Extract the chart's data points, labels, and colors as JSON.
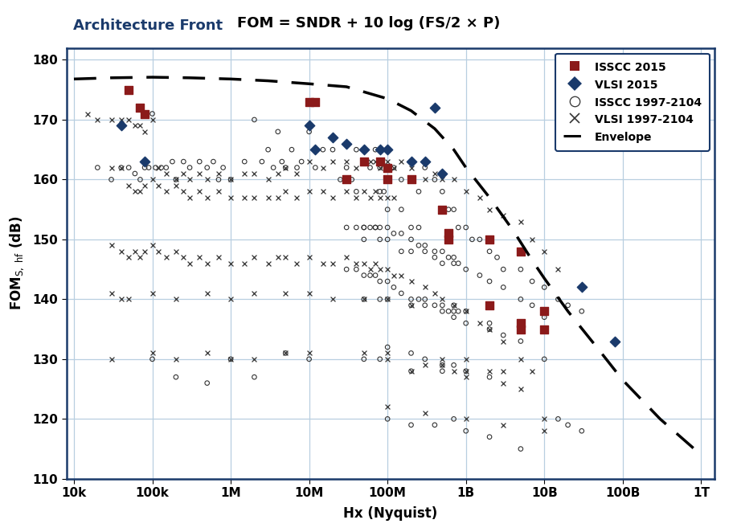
{
  "title": "FOM = SNDR + 10 log (FS/2 × P)",
  "subtitle": "Architecture Front",
  "xlabel": "Hx (Nyquist)",
  "ylabel": "FOMₛ, hf (dB)",
  "ylim": [
    110,
    182
  ],
  "yticks": [
    110,
    120,
    130,
    140,
    150,
    160,
    170,
    180
  ],
  "xtick_labels": [
    "10k",
    "100k",
    "1M",
    "10M",
    "100M",
    "1B",
    "10B",
    "100B",
    "1T"
  ],
  "xtick_vals": [
    10000,
    100000,
    1000000,
    10000000,
    100000000,
    1000000000,
    10000000000,
    100000000000,
    1000000000000
  ],
  "grid_color": "#b8cfe0",
  "bg_color": "#ffffff",
  "border_color": "#1a3a6b",
  "isscc2015_color": "#8b1a1a",
  "vlsi2015_color": "#1a3a6b",
  "isscc2015": [
    [
      50000,
      175
    ],
    [
      70000,
      172
    ],
    [
      80000,
      171
    ],
    [
      12000000,
      173
    ],
    [
      10000000,
      173
    ],
    [
      30000000,
      160
    ],
    [
      50000000,
      163
    ],
    [
      80000000,
      163
    ],
    [
      100000000,
      162
    ],
    [
      100000000,
      160
    ],
    [
      200000000,
      160
    ],
    [
      500000000,
      155
    ],
    [
      600000000,
      151
    ],
    [
      600000000,
      150
    ],
    [
      2000000000,
      150
    ],
    [
      2000000000,
      139
    ],
    [
      5000000000,
      148
    ],
    [
      5000000000,
      136
    ],
    [
      5000000000,
      135
    ],
    [
      10000000000,
      135
    ],
    [
      10000000000,
      138
    ]
  ],
  "vlsi2015": [
    [
      40000,
      169
    ],
    [
      80000,
      163
    ],
    [
      10000000,
      169
    ],
    [
      12000000,
      165
    ],
    [
      20000000,
      167
    ],
    [
      30000000,
      166
    ],
    [
      50000000,
      165
    ],
    [
      80000000,
      165
    ],
    [
      100000000,
      165
    ],
    [
      200000000,
      163
    ],
    [
      300000000,
      163
    ],
    [
      400000000,
      172
    ],
    [
      500000000,
      161
    ],
    [
      30000000000,
      142
    ],
    [
      80000000000,
      133
    ]
  ],
  "isscc_old": [
    [
      20000,
      162
    ],
    [
      30000,
      160
    ],
    [
      40000,
      162
    ],
    [
      50000,
      162
    ],
    [
      60000,
      161
    ],
    [
      70000,
      160
    ],
    [
      80000,
      162
    ],
    [
      90000,
      162
    ],
    [
      100000,
      171
    ],
    [
      110000,
      162
    ],
    [
      130000,
      162
    ],
    [
      150000,
      162
    ],
    [
      180000,
      163
    ],
    [
      200000,
      160
    ],
    [
      250000,
      163
    ],
    [
      300000,
      162
    ],
    [
      400000,
      163
    ],
    [
      500000,
      162
    ],
    [
      600000,
      163
    ],
    [
      700000,
      160
    ],
    [
      800000,
      162
    ],
    [
      1000000,
      160
    ],
    [
      1500000,
      163
    ],
    [
      2000000,
      170
    ],
    [
      2500000,
      163
    ],
    [
      3000000,
      165
    ],
    [
      3500000,
      162
    ],
    [
      4000000,
      168
    ],
    [
      4500000,
      163
    ],
    [
      5000000,
      162
    ],
    [
      6000000,
      165
    ],
    [
      7000000,
      162
    ],
    [
      8000000,
      163
    ],
    [
      10000000,
      168
    ],
    [
      12000000,
      162
    ],
    [
      15000000,
      165
    ],
    [
      20000000,
      165
    ],
    [
      25000000,
      160
    ],
    [
      30000000,
      162
    ],
    [
      35000000,
      160
    ],
    [
      40000000,
      165
    ],
    [
      50000000,
      165
    ],
    [
      60000000,
      162
    ],
    [
      70000000,
      165
    ],
    [
      80000000,
      162
    ],
    [
      90000000,
      158
    ],
    [
      100000000,
      162
    ],
    [
      120000000,
      162
    ],
    [
      150000000,
      160
    ],
    [
      200000000,
      160
    ],
    [
      250000000,
      158
    ],
    [
      300000000,
      162
    ],
    [
      400000000,
      160
    ],
    [
      500000000,
      158
    ],
    [
      600000000,
      155
    ],
    [
      700000000,
      155
    ],
    [
      800000000,
      152
    ],
    [
      1000000000,
      152
    ],
    [
      1200000000,
      150
    ],
    [
      1500000000,
      150
    ],
    [
      2000000000,
      148
    ],
    [
      2500000000,
      147
    ],
    [
      3000000000,
      145
    ],
    [
      5000000000,
      145
    ],
    [
      7000000000,
      143
    ],
    [
      10000000000,
      142
    ],
    [
      15000000000,
      140
    ],
    [
      20000000000,
      139
    ],
    [
      30000000000,
      138
    ],
    [
      50000000,
      152
    ],
    [
      70000000,
      152
    ],
    [
      100000000,
      155
    ],
    [
      150000000,
      155
    ],
    [
      200000000,
      152
    ],
    [
      250000000,
      152
    ],
    [
      80000000,
      158
    ],
    [
      40000000,
      158
    ],
    [
      50000000,
      150
    ],
    [
      80000000,
      150
    ],
    [
      100000000,
      150
    ],
    [
      150000000,
      148
    ],
    [
      200000000,
      148
    ],
    [
      300000000,
      148
    ],
    [
      400000000,
      147
    ],
    [
      500000000,
      146
    ],
    [
      700000000,
      146
    ],
    [
      1000000000,
      145
    ],
    [
      1500000000,
      144
    ],
    [
      2000000000,
      143
    ],
    [
      3000000000,
      142
    ],
    [
      5000000000,
      140
    ],
    [
      7000000000,
      139
    ],
    [
      10000000000,
      137
    ],
    [
      30000000,
      152
    ],
    [
      40000000,
      152
    ],
    [
      50000000,
      152
    ],
    [
      60000000,
      152
    ],
    [
      70000000,
      152
    ],
    [
      80000000,
      152
    ],
    [
      100000000,
      152
    ],
    [
      120000000,
      151
    ],
    [
      150000000,
      151
    ],
    [
      200000000,
      150
    ],
    [
      250000000,
      149
    ],
    [
      300000000,
      149
    ],
    [
      400000000,
      148
    ],
    [
      500000000,
      148
    ],
    [
      600000000,
      147
    ],
    [
      700000000,
      147
    ],
    [
      800000000,
      146
    ],
    [
      30000000,
      145
    ],
    [
      40000000,
      145
    ],
    [
      50000000,
      144
    ],
    [
      60000000,
      144
    ],
    [
      70000000,
      144
    ],
    [
      80000000,
      143
    ],
    [
      100000000,
      143
    ],
    [
      120000000,
      142
    ],
    [
      150000000,
      141
    ],
    [
      200000000,
      140
    ],
    [
      250000000,
      140
    ],
    [
      300000000,
      140
    ],
    [
      400000000,
      139
    ],
    [
      500000000,
      139
    ],
    [
      600000000,
      138
    ],
    [
      700000000,
      138
    ],
    [
      800000000,
      138
    ],
    [
      50000000,
      140
    ],
    [
      80000000,
      140
    ],
    [
      100000000,
      140
    ],
    [
      200000000,
      139
    ],
    [
      300000000,
      139
    ],
    [
      500000000,
      138
    ],
    [
      700000000,
      137
    ],
    [
      1000000000,
      136
    ],
    [
      2000000000,
      135
    ],
    [
      3000000000,
      134
    ],
    [
      100000000,
      132
    ],
    [
      200000000,
      131
    ],
    [
      300000000,
      130
    ],
    [
      500000000,
      129
    ],
    [
      700000000,
      129
    ],
    [
      1000000000,
      128
    ],
    [
      2000000000,
      127
    ],
    [
      100000000,
      120
    ],
    [
      200000000,
      119
    ],
    [
      400000000,
      119
    ],
    [
      700000000,
      120
    ],
    [
      1000000000,
      118
    ],
    [
      2000000000,
      117
    ],
    [
      5000000000,
      115
    ],
    [
      50000000,
      130
    ],
    [
      80000000,
      130
    ],
    [
      200000000,
      128
    ],
    [
      500000000,
      128
    ],
    [
      100000,
      130
    ],
    [
      200000,
      127
    ],
    [
      500000,
      126
    ],
    [
      1000000,
      130
    ],
    [
      2000000,
      127
    ],
    [
      5000000,
      131
    ],
    [
      10000000,
      130
    ],
    [
      700000000,
      139
    ],
    [
      1000000000,
      138
    ],
    [
      2000000000,
      136
    ],
    [
      5000000000,
      133
    ],
    [
      10000000000,
      130
    ],
    [
      15000000000,
      120
    ],
    [
      20000000000,
      119
    ],
    [
      30000000000,
      118
    ]
  ],
  "vlsi_old": [
    [
      15000,
      171
    ],
    [
      20000,
      170
    ],
    [
      30000,
      170
    ],
    [
      40000,
      170
    ],
    [
      50000,
      170
    ],
    [
      60000,
      169
    ],
    [
      70000,
      169
    ],
    [
      80000,
      168
    ],
    [
      100000,
      170
    ],
    [
      120000,
      162
    ],
    [
      150000,
      161
    ],
    [
      200000,
      160
    ],
    [
      250000,
      161
    ],
    [
      300000,
      160
    ],
    [
      400000,
      161
    ],
    [
      500000,
      160
    ],
    [
      700000,
      161
    ],
    [
      1000000,
      160
    ],
    [
      1500000,
      161
    ],
    [
      2000000,
      161
    ],
    [
      3000000,
      160
    ],
    [
      4000000,
      161
    ],
    [
      5000000,
      162
    ],
    [
      7000000,
      161
    ],
    [
      10000000,
      163
    ],
    [
      15000000,
      162
    ],
    [
      20000000,
      163
    ],
    [
      30000000,
      163
    ],
    [
      40000000,
      162
    ],
    [
      50000000,
      163
    ],
    [
      60000000,
      163
    ],
    [
      70000000,
      163
    ],
    [
      80000000,
      162
    ],
    [
      100000000,
      163
    ],
    [
      120000000,
      162
    ],
    [
      150000000,
      163
    ],
    [
      200000000,
      162
    ],
    [
      300000000,
      160
    ],
    [
      400000000,
      161
    ],
    [
      500000000,
      160
    ],
    [
      700000000,
      160
    ],
    [
      1000000000,
      158
    ],
    [
      1500000000,
      157
    ],
    [
      2000000000,
      155
    ],
    [
      3000000000,
      154
    ],
    [
      5000000000,
      153
    ],
    [
      7000000000,
      150
    ],
    [
      10000000000,
      148
    ],
    [
      15000000000,
      145
    ],
    [
      30000,
      162
    ],
    [
      40000,
      162
    ],
    [
      50000,
      159
    ],
    [
      60000,
      158
    ],
    [
      70000,
      158
    ],
    [
      80000,
      159
    ],
    [
      100000,
      160
    ],
    [
      120000,
      159
    ],
    [
      150000,
      158
    ],
    [
      200000,
      159
    ],
    [
      250000,
      158
    ],
    [
      300000,
      157
    ],
    [
      400000,
      158
    ],
    [
      500000,
      157
    ],
    [
      700000,
      158
    ],
    [
      1000000,
      157
    ],
    [
      1500000,
      157
    ],
    [
      2000000,
      157
    ],
    [
      3000000,
      157
    ],
    [
      4000000,
      157
    ],
    [
      5000000,
      158
    ],
    [
      7000000,
      157
    ],
    [
      10000000,
      158
    ],
    [
      15000000,
      158
    ],
    [
      20000000,
      157
    ],
    [
      30000000,
      158
    ],
    [
      40000000,
      157
    ],
    [
      50000000,
      158
    ],
    [
      60000000,
      157
    ],
    [
      70000000,
      158
    ],
    [
      80000000,
      157
    ],
    [
      100000000,
      157
    ],
    [
      120000000,
      157
    ],
    [
      30000,
      149
    ],
    [
      40000,
      148
    ],
    [
      50000,
      147
    ],
    [
      60000,
      148
    ],
    [
      70000,
      147
    ],
    [
      80000,
      148
    ],
    [
      100000,
      149
    ],
    [
      120000,
      148
    ],
    [
      150000,
      147
    ],
    [
      200000,
      148
    ],
    [
      250000,
      147
    ],
    [
      300000,
      146
    ],
    [
      400000,
      147
    ],
    [
      500000,
      146
    ],
    [
      700000,
      147
    ],
    [
      1000000,
      146
    ],
    [
      1500000,
      146
    ],
    [
      2000000,
      147
    ],
    [
      3000000,
      146
    ],
    [
      4000000,
      147
    ],
    [
      5000000,
      147
    ],
    [
      7000000,
      146
    ],
    [
      10000000,
      147
    ],
    [
      15000000,
      146
    ],
    [
      20000000,
      146
    ],
    [
      30000000,
      147
    ],
    [
      40000000,
      146
    ],
    [
      50000000,
      146
    ],
    [
      60000000,
      145
    ],
    [
      70000000,
      146
    ],
    [
      80000000,
      145
    ],
    [
      100000000,
      145
    ],
    [
      120000000,
      144
    ],
    [
      150000000,
      144
    ],
    [
      200000000,
      143
    ],
    [
      300000000,
      142
    ],
    [
      400000000,
      141
    ],
    [
      500000000,
      140
    ],
    [
      700000000,
      139
    ],
    [
      1000000000,
      138
    ],
    [
      1500000000,
      136
    ],
    [
      2000000000,
      135
    ],
    [
      3000000000,
      133
    ],
    [
      5000000000,
      130
    ],
    [
      7000000000,
      128
    ],
    [
      10000000000,
      118
    ],
    [
      30000,
      141
    ],
    [
      40000,
      140
    ],
    [
      50000,
      140
    ],
    [
      100000,
      141
    ],
    [
      200000,
      140
    ],
    [
      500000,
      141
    ],
    [
      1000000,
      140
    ],
    [
      2000000,
      141
    ],
    [
      5000000,
      141
    ],
    [
      10000000,
      141
    ],
    [
      20000000,
      140
    ],
    [
      50000000,
      140
    ],
    [
      100000000,
      140
    ],
    [
      200000000,
      139
    ],
    [
      30000,
      130
    ],
    [
      100000,
      131
    ],
    [
      1000000,
      130
    ],
    [
      10000000,
      131
    ],
    [
      100000000,
      130
    ],
    [
      300000000,
      129
    ],
    [
      1000000000,
      127
    ],
    [
      3000000000,
      126
    ],
    [
      200000,
      130
    ],
    [
      500000,
      131
    ],
    [
      2000000,
      130
    ],
    [
      5000000,
      131
    ],
    [
      50000000,
      131
    ],
    [
      100000000,
      131
    ],
    [
      500000000,
      130
    ],
    [
      1000000000,
      130
    ],
    [
      5000000000,
      125
    ],
    [
      100000000,
      122
    ],
    [
      300000000,
      121
    ],
    [
      1000000000,
      120
    ],
    [
      3000000000,
      119
    ],
    [
      10000000000,
      120
    ],
    [
      200000000,
      128
    ],
    [
      500000000,
      129
    ],
    [
      700000000,
      128
    ],
    [
      1000000000,
      128
    ],
    [
      2000000000,
      128
    ],
    [
      3000000000,
      128
    ]
  ],
  "envelope_x": [
    10000,
    30000,
    100000,
    300000,
    1000000,
    3000000,
    10000000,
    30000000,
    100000000,
    200000000,
    400000000,
    700000000,
    1000000000,
    2000000000,
    4000000000,
    7000000000,
    10000000000,
    20000000000,
    50000000000,
    100000000000,
    300000000000,
    1000000000000
  ],
  "envelope_y": [
    176.8,
    177.0,
    177.1,
    177.0,
    176.8,
    176.5,
    176.0,
    175.5,
    173.5,
    171.5,
    168.5,
    165.0,
    162.0,
    157.0,
    151.5,
    146.5,
    143.5,
    138.0,
    131.5,
    126.5,
    120.0,
    114.0
  ]
}
